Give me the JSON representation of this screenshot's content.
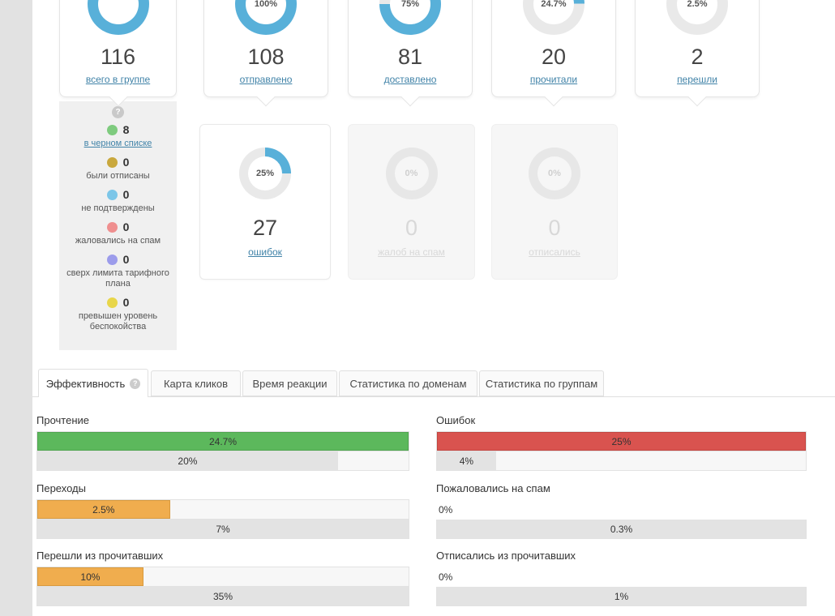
{
  "colors": {
    "donut_blue": "#58b0d9",
    "donut_track": "#e9e9e9",
    "donut_track_disabled": "#e7e7e7"
  },
  "funnel_cards": [
    {
      "value": "116",
      "label": "всего в группе",
      "percent_label": "",
      "donut_percent": 100
    },
    {
      "value": "108",
      "label": "отправлено",
      "percent_label": "100%",
      "donut_percent": 100
    },
    {
      "value": "81",
      "label": "доставлено",
      "percent_label": "75%",
      "donut_percent": 75
    },
    {
      "value": "20",
      "label": "прочитали",
      "percent_label": "24.7%",
      "donut_percent": 24.7
    },
    {
      "value": "2",
      "label": "перешли",
      "percent_label": "2.5%",
      "donut_percent": 2.5
    }
  ],
  "legend": {
    "help": "?",
    "items": [
      {
        "color": "#7ecb7e",
        "value": "8",
        "label": "в черном списке"
      },
      {
        "color": "#c9a83d",
        "value": "0",
        "label": "были отписаны"
      },
      {
        "color": "#7cc6e8",
        "value": "0",
        "label": "не подтверждены"
      },
      {
        "color": "#ef8f8f",
        "value": "0",
        "label": "жаловались на спам"
      },
      {
        "color": "#9c9ceb",
        "value": "0",
        "label": "сверх лимита тарифного плана"
      },
      {
        "color": "#e8d64a",
        "value": "0",
        "label": "превышен уровень беспокойства"
      }
    ]
  },
  "detail_cards": [
    {
      "value": "27",
      "label": "ошибок",
      "percent_label": "25%",
      "donut_percent": 25,
      "disabled": false
    },
    {
      "value": "0",
      "label": "жалоб на спам",
      "percent_label": "0%",
      "donut_percent": 0,
      "disabled": true
    },
    {
      "value": "0",
      "label": "отписались",
      "percent_label": "0%",
      "donut_percent": 0,
      "disabled": true
    }
  ],
  "tabs": [
    {
      "label": "Эффективность",
      "help": "?",
      "active": true
    },
    {
      "label": "Карта кликов",
      "active": false
    },
    {
      "label": "Время реакции",
      "active": false
    },
    {
      "label": "Статистика по доменам",
      "active": false
    },
    {
      "label": "Статистика по группам",
      "active": false
    }
  ],
  "chart_data": {
    "type": "bar",
    "title": "Эффективность",
    "groups": [
      {
        "title": "Прочтение",
        "value": 24.7,
        "value_label": "24.7%",
        "color": "#5cb85c",
        "border": "#4fa44f",
        "reference": 20,
        "reference_label": "20%"
      },
      {
        "title": "Переходы",
        "value": 2.5,
        "value_label": "2.5%",
        "color": "#f0ad4e",
        "border": "#d89a3e",
        "reference": 7,
        "reference_label": "7%"
      },
      {
        "title": "Перешли из прочитавших",
        "value": 10,
        "value_label": "10%",
        "color": "#f0ad4e",
        "border": "#d89a3e",
        "reference": 35,
        "reference_label": "35%"
      },
      {
        "title": "Ошибок",
        "value": 25,
        "value_label": "25%",
        "color": "#d9534f",
        "border": "#c24540",
        "reference": 4,
        "reference_label": "4%"
      },
      {
        "title": "Пожаловались на спам",
        "value": 0,
        "value_label": "0%",
        "color": null,
        "border": null,
        "reference": 0.3,
        "reference_label": "0.3%"
      },
      {
        "title": "Отписались из прочитавших",
        "value": 0,
        "value_label": "0%",
        "color": null,
        "border": null,
        "reference": 1,
        "reference_label": "1%"
      }
    ]
  }
}
